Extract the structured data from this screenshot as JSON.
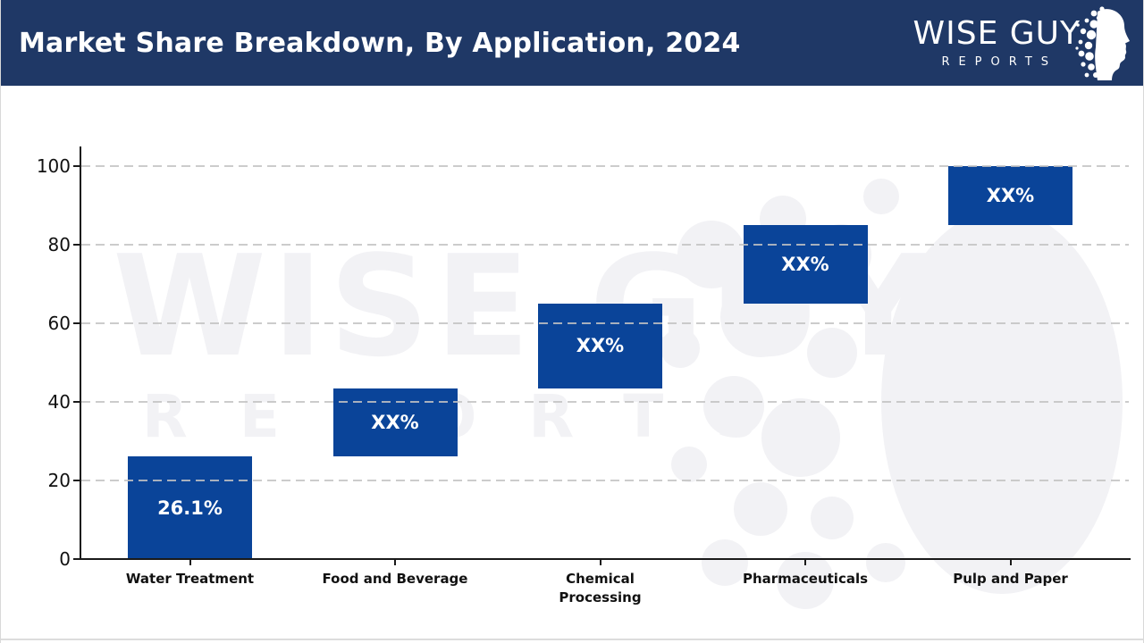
{
  "header": {
    "title": "Market Share Breakdown, By Application, 2024",
    "logo": {
      "name": "WISE GUY",
      "tagline": "REPORTS"
    }
  },
  "watermark": {
    "line1": "WISE GUY",
    "line2": "REPORTS"
  },
  "chart_data": {
    "type": "bar",
    "subtype": "waterfall",
    "title": "Market Share Breakdown, By Application, 2024",
    "categories": [
      "Water Treatment",
      "Food and Beverage",
      "Chemical\nProcessing",
      "Pharmaceuticals",
      "Pulp and Paper"
    ],
    "segments": [
      {
        "category": "Water Treatment",
        "start": 0,
        "end": 26.1,
        "label": "26.1%"
      },
      {
        "category": "Food and Beverage",
        "start": 26.1,
        "end": 43.5,
        "label": "XX%"
      },
      {
        "category": "Chemical Processing",
        "start": 43.5,
        "end": 65,
        "label": "XX%"
      },
      {
        "category": "Pharmaceuticals",
        "start": 65,
        "end": 85,
        "label": "XX%"
      },
      {
        "category": "Pulp and Paper",
        "start": 85,
        "end": 100,
        "label": "XX%"
      }
    ],
    "y_ticks": [
      0,
      20,
      40,
      60,
      80,
      100
    ],
    "ylim": [
      0,
      105
    ],
    "xlabel": "",
    "ylabel": "",
    "grid": "horizontal-dashed",
    "legend": "none",
    "bar_color": "#0a4499",
    "bar_label_color": "#ffffff",
    "header_color": "#1f3866"
  }
}
